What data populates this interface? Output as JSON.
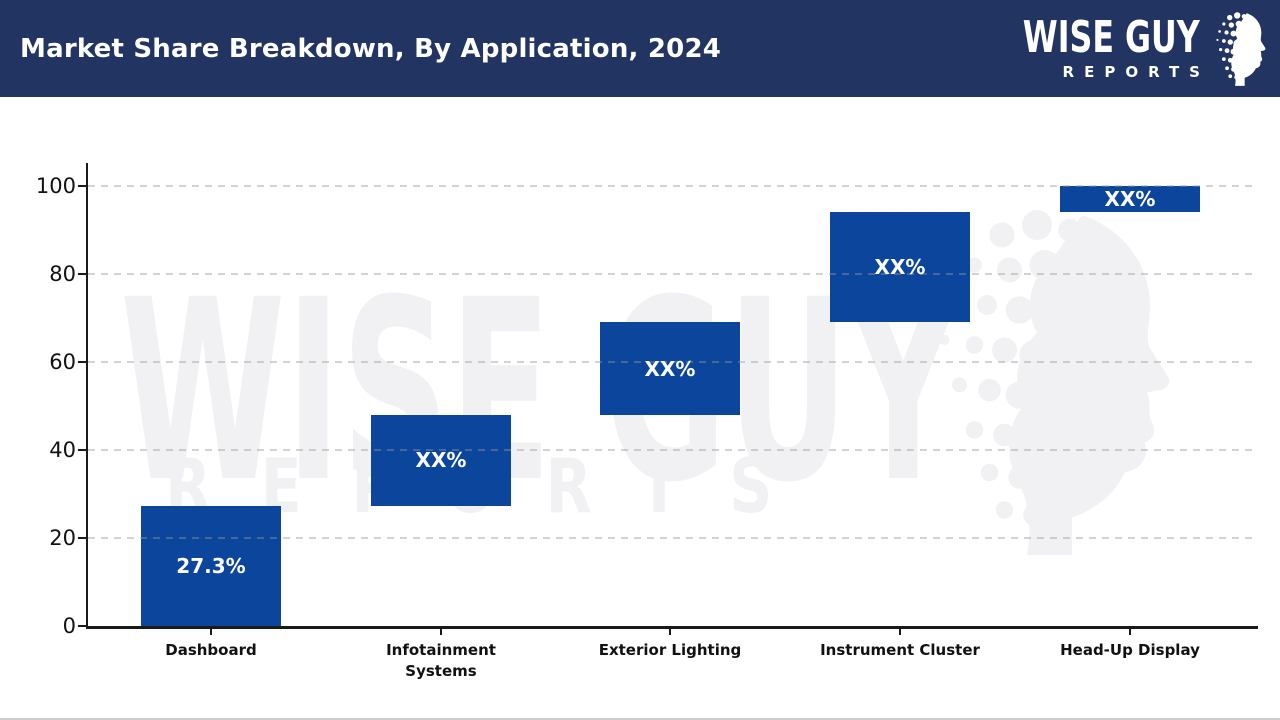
{
  "header": {
    "title": "Market Share Breakdown, By Application, 2024",
    "logo": {
      "line1": "WISE GUY",
      "line2": "REPORTS"
    }
  },
  "watermark": {
    "line1": "WISE GUY",
    "line2": "REPORTS"
  },
  "chart_data": {
    "type": "bar",
    "subtype": "floating-segment-waterfall",
    "title": "Market Share Breakdown, By Application, 2024",
    "categories": [
      "Dashboard",
      "Infotainment\nSystems",
      "Exterior Lighting",
      "Instrument Cluster",
      "Head-Up Display"
    ],
    "segments": [
      {
        "category": "Dashboard",
        "start": 0,
        "end": 27.3,
        "label": "27.3%"
      },
      {
        "category": "Infotainment Systems",
        "start": 27.3,
        "end": 48,
        "label": "XX%"
      },
      {
        "category": "Exterior Lighting",
        "start": 48,
        "end": 69,
        "label": "XX%"
      },
      {
        "category": "Instrument Cluster",
        "start": 69,
        "end": 94,
        "label": "XX%"
      },
      {
        "category": "Head-Up Display",
        "start": 94,
        "end": 100,
        "label": "XX%"
      }
    ],
    "yticks": [
      0,
      20,
      40,
      60,
      80,
      100
    ],
    "ylim": [
      0,
      104
    ],
    "xlabel": "",
    "ylabel": "",
    "grid": "horizontal-dashed",
    "legend": "none",
    "bar_color": "#0c469c",
    "value_label_color": "#ffffff"
  },
  "colors": {
    "header_bg": "#223461",
    "bar": "#0c469c",
    "grid": "#d8d8d8",
    "watermark": "#f1f1f4",
    "axis": "#000000"
  }
}
